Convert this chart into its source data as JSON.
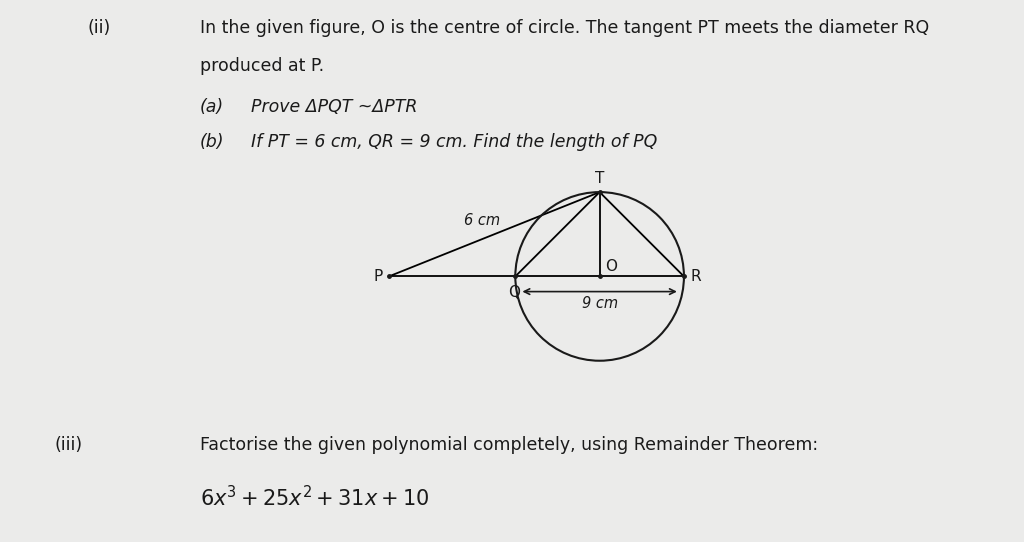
{
  "bg_color": "#ebebea",
  "text_color": "#1a1a1a",
  "ii_label": "(ii)",
  "ii_text_line1": "In the given figure, O is the centre of circle. The tangent PT meets the diameter RQ",
  "ii_text_line2": "produced at P.",
  "a_label": "(a)",
  "a_text": "Prove ΔPQT ~ΔPTR",
  "b_label": "(b)",
  "b_text": "If PT = 6 cm, QR = 9 cm. Find the length of PQ",
  "iii_label": "(iii)",
  "iii_text": "Factorise the given polynomial completely, using Remainder Theorem:",
  "poly_text": "6x³ + 25x² + 31x + 10",
  "label_6cm": "6 cm",
  "label_9cm": "9 cm",
  "fig_width": 10.24,
  "fig_height": 5.42
}
